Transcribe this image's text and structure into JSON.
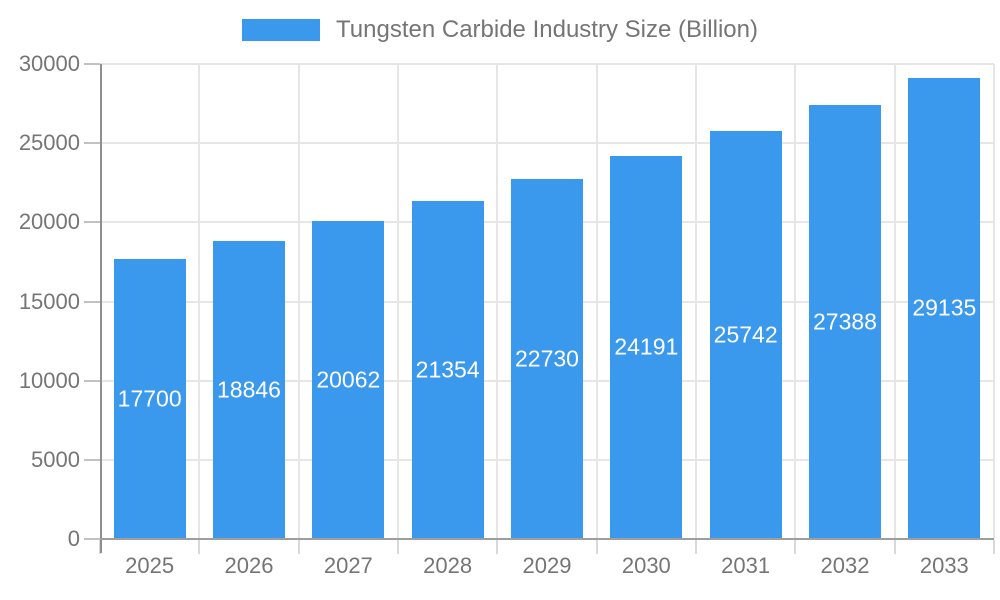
{
  "chart_data": {
    "type": "bar",
    "title": "",
    "legend": {
      "label": "Tungsten Carbide Industry Size (Billion)",
      "position": "top-center"
    },
    "categories": [
      "2025",
      "2026",
      "2027",
      "2028",
      "2029",
      "2030",
      "2031",
      "2032",
      "2033"
    ],
    "values": [
      17700,
      18846,
      20062,
      21354,
      22730,
      24191,
      25742,
      27388,
      29135
    ],
    "xlabel": "",
    "ylabel": "",
    "ylim": [
      0,
      30000
    ],
    "yticks": [
      0,
      5000,
      10000,
      15000,
      20000,
      25000,
      30000
    ],
    "grid": "horizontal and vertical light gridlines",
    "value_labels": "white, centered vertically inside each bar",
    "colors": {
      "bar": "#3a99ec",
      "value_label": "#ffffff",
      "axis_label": "#757575",
      "legend_label": "#757575",
      "grid_line": "#e6e6e6",
      "axis_line": "#9e9e9e",
      "background": "#ffffff"
    }
  }
}
